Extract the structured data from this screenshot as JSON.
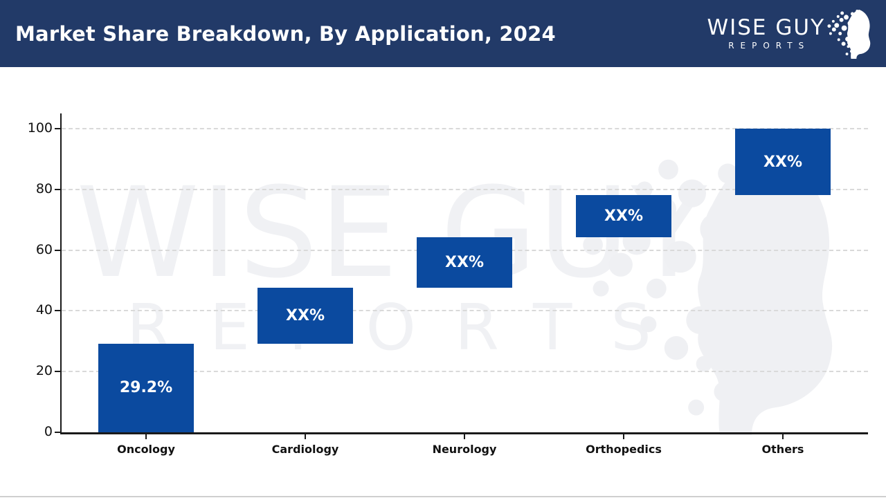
{
  "header": {
    "title": "Market Share Breakdown, By Application, 2024",
    "bg_color": "#223a68",
    "text_color": "#ffffff",
    "logo": {
      "line1": "WISE GUY",
      "line2": "REPORTS"
    }
  },
  "watermark": {
    "line1": "WISE GUY",
    "line2": "REPORTS",
    "text_color": "#f0f1f4",
    "face_color": "#eff0f3"
  },
  "footer": {
    "line_color": "#cfcfcf"
  },
  "chart_data": {
    "type": "bar",
    "subtype": "waterfall / stepped market-share breakdown, single series",
    "title": "Market Share Breakdown, By Application, 2024",
    "categories": [
      "Oncology",
      "Cardiology",
      "Neurology",
      "Orthopedics",
      "Others"
    ],
    "segments": [
      {
        "category": "Oncology",
        "start": 0,
        "end": 29.2,
        "value": 29.2,
        "label": "29.2%"
      },
      {
        "category": "Cardiology",
        "start": 29.2,
        "end": 47.6,
        "value": 18.4,
        "label": "XX%"
      },
      {
        "category": "Neurology",
        "start": 47.6,
        "end": 64.2,
        "value": 16.6,
        "label": "XX%"
      },
      {
        "category": "Orthopedics",
        "start": 64.2,
        "end": 78.1,
        "value": 13.9,
        "label": "XX%"
      },
      {
        "category": "Others",
        "start": 78.1,
        "end": 100,
        "value": 21.9,
        "label": "XX%"
      }
    ],
    "xlabel": "",
    "ylabel": "",
    "ylim": [
      0,
      100
    ],
    "yticks": [
      0,
      20,
      40,
      60,
      80,
      100
    ],
    "grid": "horizontal dashed",
    "legend": "none",
    "bar_color": "#0b4a9f",
    "bar_label_color": "#ffffff",
    "axis_color": "#1a1a1a",
    "grid_color": "#d9d9d9",
    "tick_label_color": "#111111"
  }
}
